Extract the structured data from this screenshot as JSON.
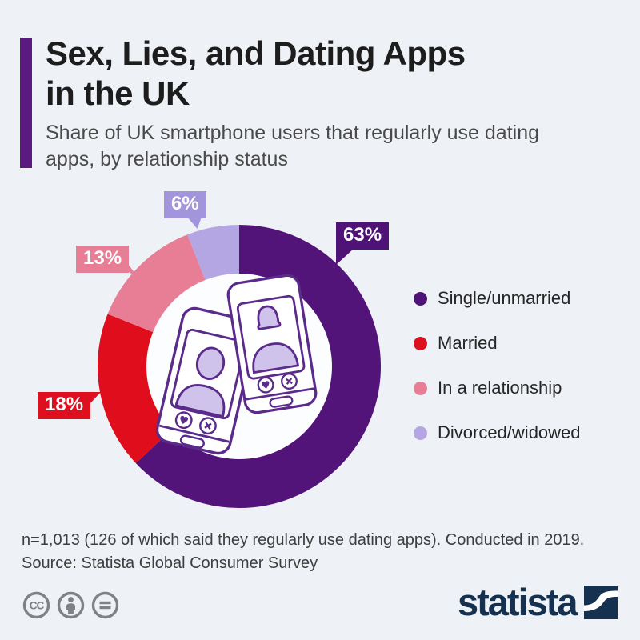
{
  "page": {
    "background": "#eef1f6"
  },
  "header": {
    "accent_color": "#5c1a80",
    "title_lines": [
      "Sex, Lies, and Dating Apps",
      "in the UK"
    ],
    "subtitle_lines": [
      "Share of UK smartphone users that regularly use dating",
      "apps, by relationship status"
    ]
  },
  "chart_data": {
    "type": "pie",
    "subtype": "donut",
    "title": "Sex, Lies, and Dating Apps in the UK",
    "categories": [
      "Single/unmarried",
      "Married",
      "In a relationship",
      "Divorced/widowed"
    ],
    "values": [
      63,
      18,
      13,
      6
    ],
    "unit": "percent",
    "labels": [
      "63%",
      "18%",
      "13%",
      "6%"
    ],
    "colors": [
      "#521479",
      "#e00d1c",
      "#e77e95",
      "#b4a6e3"
    ],
    "callout_colors": [
      "#4f1377",
      "#de0f1f",
      "#e77e95",
      "#a295dc"
    ],
    "start_angle_deg": 0,
    "direction": "clockwise",
    "legend_position": "right",
    "center_illustration": "two-dating-app-phones",
    "hole_color": "#fcfdff"
  },
  "legend": {
    "items": [
      {
        "label": "Single/unmarried",
        "color": "#4f1377"
      },
      {
        "label": "Married",
        "color": "#de0f1f"
      },
      {
        "label": "In a relationship",
        "color": "#e77e95"
      },
      {
        "label": "Divorced/widowed",
        "color": "#b4a6e3"
      }
    ]
  },
  "footer": {
    "note": "n=1,013 (126 of which said they regularly use dating apps). Conducted in 2019.",
    "source": "Source: Statista Global Consumer Survey",
    "license_icons": [
      "cc",
      "attribution",
      "no-derivatives"
    ]
  },
  "branding": {
    "logo_text": "statista",
    "logo_color": "#15314f"
  }
}
